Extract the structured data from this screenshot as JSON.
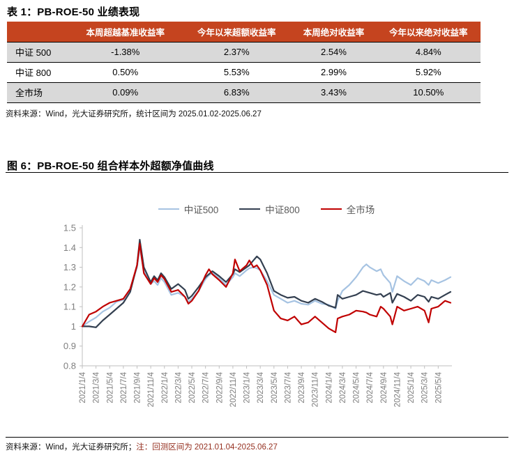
{
  "perf_table": {
    "title": "表 1：PB-ROE-50 业绩表现",
    "header_bg": "#C5441F",
    "row_alt_bg": "#D9D9D9",
    "columns": [
      "",
      "本周超越基准收益率",
      "今年以来超额收益率",
      "本周绝对收益率",
      "今年以来绝对收益率"
    ],
    "rows": [
      {
        "label": "中证 500",
        "values": [
          "-1.38%",
          "2.37%",
          "2.54%",
          "4.84%"
        ]
      },
      {
        "label": "中证 800",
        "values": [
          "0.50%",
          "5.53%",
          "2.99%",
          "5.92%"
        ]
      },
      {
        "label": "全市场",
        "values": [
          "0.09%",
          "6.83%",
          "3.43%",
          "10.50%"
        ]
      }
    ],
    "source": "资料来源：Wind，光大证券研究所，统计区间为 2025.01.02-2025.06.27"
  },
  "figure": {
    "title": "图 6：PB-ROE-50 组合样本外超额净值曲线",
    "source_prefix": "资料来源：Wind，光大证券研究所；",
    "source_note": "注：回测区间为 2021.01.04-2025.06.27",
    "note_color": "#953020"
  },
  "chart_data": {
    "type": "line",
    "title": "PB-ROE-50 组合样本外超额净值曲线",
    "xlabel": "",
    "ylabel": "",
    "ylim": [
      0.8,
      1.5
    ],
    "y_ticks": [
      "0.8",
      "0.9",
      "1",
      "1.1",
      "1.2",
      "1.3",
      "1.4",
      "1.5"
    ],
    "grid": false,
    "legend_position": "top-center",
    "axis_color": "#BFBFBF",
    "tick_label_color": "#7F7F7F",
    "x_unit": "months since 2021/1/4",
    "x_tick_months": [
      0,
      2,
      4,
      6,
      8,
      10,
      12,
      14,
      16,
      18,
      20,
      22,
      24,
      26,
      28,
      30,
      32,
      34,
      36,
      38,
      40,
      42,
      44,
      46,
      48,
      50,
      52
    ],
    "x_tick_labels": [
      "2021/1/4",
      "2021/3/4",
      "2021/5/4",
      "2021/7/4",
      "2021/9/4",
      "2021/11/4",
      "2022/1/4",
      "2022/3/4",
      "2022/5/4",
      "2022/7/4",
      "2022/9/4",
      "2022/11/4",
      "2023/1/4",
      "2023/3/4",
      "2023/5/4",
      "2023/7/4",
      "2023/9/4",
      "2023/11/4",
      "2024/1/4",
      "2024/3/4",
      "2024/5/4",
      "2024/7/4",
      "2024/9/4",
      "2024/11/4",
      "2025/1/4",
      "2025/3/4",
      "2025/5/4"
    ],
    "x_max": 53.8,
    "x": [
      0,
      1,
      2,
      3,
      4,
      5,
      6,
      7,
      8,
      8.4,
      9,
      10,
      10.5,
      11,
      11.5,
      12,
      13,
      14,
      15,
      15.5,
      16,
      17,
      18,
      18.5,
      19,
      20,
      21,
      22,
      22.3,
      23,
      24,
      24.4,
      25,
      25.5,
      26,
      27,
      28,
      29,
      30,
      31,
      32,
      33,
      34,
      35,
      36,
      37,
      37.3,
      38,
      39,
      40,
      41,
      41.5,
      42,
      43,
      43.6,
      44,
      45,
      45.3,
      46,
      47,
      48,
      49,
      50,
      50.6,
      51,
      52,
      53,
      53.8
    ],
    "series": [
      {
        "name": "中证500",
        "color": "#A6C3E2",
        "values": [
          1.0,
          1.025,
          1.045,
          1.075,
          1.095,
          1.125,
          1.135,
          1.19,
          1.3,
          1.4,
          1.28,
          1.215,
          1.23,
          1.21,
          1.245,
          1.225,
          1.16,
          1.17,
          1.15,
          1.125,
          1.14,
          1.18,
          1.24,
          1.26,
          1.27,
          1.245,
          1.21,
          1.25,
          1.27,
          1.255,
          1.285,
          1.295,
          1.3,
          1.295,
          1.285,
          1.23,
          1.16,
          1.14,
          1.12,
          1.13,
          1.115,
          1.11,
          1.13,
          1.115,
          1.11,
          1.09,
          1.13,
          1.18,
          1.21,
          1.25,
          1.3,
          1.315,
          1.3,
          1.28,
          1.29,
          1.26,
          1.22,
          1.175,
          1.255,
          1.23,
          1.21,
          1.245,
          1.23,
          1.21,
          1.235,
          1.22,
          1.235,
          1.25
        ]
      },
      {
        "name": "中证800",
        "color": "#333F50",
        "values": [
          1.0,
          1.0,
          0.995,
          1.03,
          1.06,
          1.09,
          1.12,
          1.175,
          1.31,
          1.44,
          1.3,
          1.225,
          1.255,
          1.235,
          1.27,
          1.25,
          1.19,
          1.215,
          1.185,
          1.14,
          1.155,
          1.2,
          1.25,
          1.265,
          1.28,
          1.255,
          1.225,
          1.265,
          1.29,
          1.275,
          1.3,
          1.31,
          1.335,
          1.355,
          1.34,
          1.27,
          1.18,
          1.16,
          1.145,
          1.15,
          1.13,
          1.12,
          1.14,
          1.125,
          1.105,
          1.095,
          1.16,
          1.14,
          1.15,
          1.16,
          1.18,
          1.175,
          1.17,
          1.16,
          1.165,
          1.15,
          1.17,
          1.12,
          1.165,
          1.15,
          1.13,
          1.16,
          1.15,
          1.125,
          1.15,
          1.14,
          1.16,
          1.175
        ]
      },
      {
        "name": "全市场",
        "color": "#C00000",
        "values": [
          1.0,
          1.06,
          1.075,
          1.1,
          1.12,
          1.13,
          1.14,
          1.19,
          1.31,
          1.42,
          1.27,
          1.215,
          1.245,
          1.225,
          1.26,
          1.24,
          1.175,
          1.185,
          1.15,
          1.115,
          1.13,
          1.18,
          1.26,
          1.29,
          1.265,
          1.235,
          1.2,
          1.27,
          1.34,
          1.28,
          1.31,
          1.335,
          1.3,
          1.31,
          1.285,
          1.21,
          1.08,
          1.04,
          1.03,
          1.05,
          1.01,
          1.02,
          1.05,
          1.02,
          0.99,
          0.97,
          1.04,
          1.05,
          1.06,
          1.08,
          1.075,
          1.07,
          1.06,
          1.05,
          1.1,
          1.09,
          1.05,
          1.01,
          1.1,
          1.08,
          1.09,
          1.1,
          1.08,
          1.02,
          1.09,
          1.1,
          1.13,
          1.12
        ]
      }
    ]
  }
}
